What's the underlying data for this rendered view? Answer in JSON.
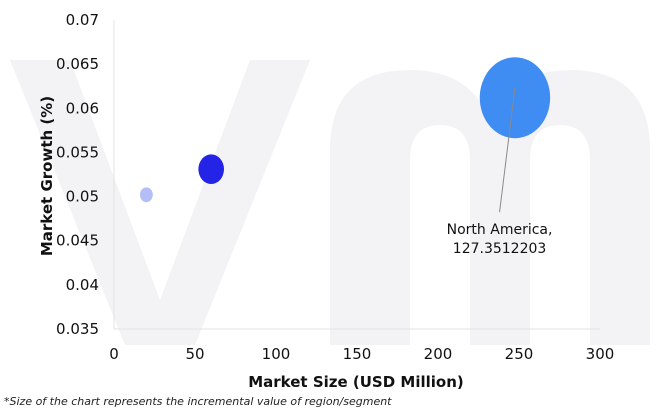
{
  "chart_data": {
    "type": "scatter",
    "xlabel": "Market Size (USD Million)",
    "ylabel": "Market Growth (%)",
    "xlim": [
      0,
      300
    ],
    "ylim": [
      0.035,
      0.07
    ],
    "x_ticks": [
      "0",
      "50",
      "100",
      "150",
      "200",
      "250",
      "300"
    ],
    "y_ticks": [
      "0.035",
      "0.04",
      "0.045",
      "0.05",
      "0.055",
      "0.06",
      "0.065",
      "0.07"
    ],
    "points": [
      {
        "x": 20,
        "y": 0.0502,
        "rx": 4,
        "ry": 5.5,
        "color": "#b3bdf6"
      },
      {
        "x": 60,
        "y": 0.0531,
        "rx": 8,
        "ry": 11,
        "color": "#2424e6"
      },
      {
        "x": 247.5,
        "y": 0.0612,
        "rx": 22,
        "ry": 30,
        "color": "#3f8cf2"
      }
    ],
    "annotation": {
      "text_line1": "North America,",
      "text_line2": "127.3512203",
      "point_index": 2,
      "at_x": 238,
      "at_y": 0.048
    },
    "grid": false,
    "legend": "none",
    "axis_color": "#e3e3e3"
  },
  "footnote": "*Size of the chart represents the incremental value of region/segment"
}
